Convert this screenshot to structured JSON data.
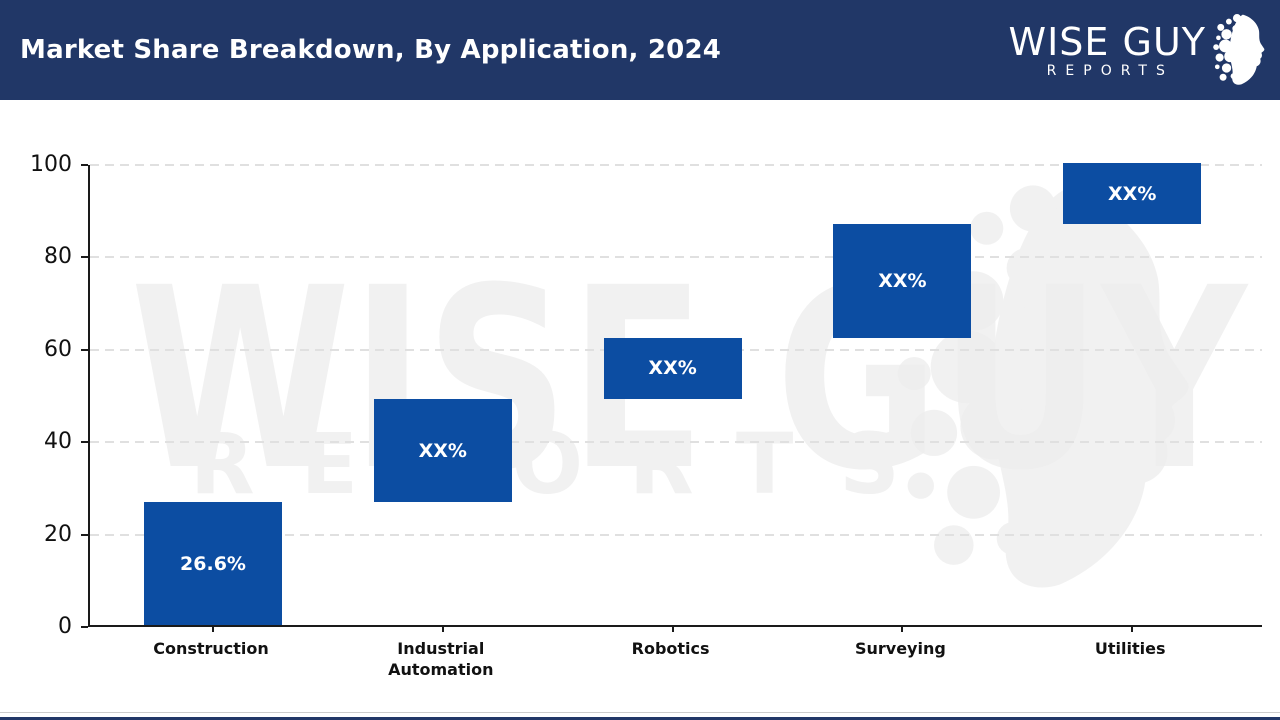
{
  "header": {
    "title": "Market Share Breakdown, By Application, 2024",
    "logo": {
      "name": "WISE GUY",
      "tagline": "REPORTS"
    }
  },
  "watermark": {
    "name": "WISE GUY",
    "tagline": "REPORTS"
  },
  "chart_data": {
    "type": "bar",
    "subtype": "waterfall",
    "title": "Market Share Breakdown, By Application, 2024",
    "categories": [
      "Construction",
      "Industrial Automation",
      "Robotics",
      "Surveying",
      "Utilities"
    ],
    "segments": [
      {
        "category": "Construction",
        "start": 0,
        "end": 26.6,
        "label": "26.6%"
      },
      {
        "category": "Industrial Automation",
        "start": 26.6,
        "end": 48.9,
        "label": "XX%"
      },
      {
        "category": "Robotics",
        "start": 48.9,
        "end": 62.2,
        "label": "XX%"
      },
      {
        "category": "Surveying",
        "start": 62.2,
        "end": 86.8,
        "label": "XX%"
      },
      {
        "category": "Utilities",
        "start": 86.8,
        "end": 100,
        "label": "XX%"
      }
    ],
    "xlabel": "",
    "ylabel": "",
    "ylim": [
      0,
      100
    ],
    "yticks": [
      0,
      20,
      40,
      60,
      80,
      100
    ],
    "grid": "horizontal-dashed",
    "legend": "none",
    "bar_color": "#0c4da2",
    "bar_label_color": "#ffffff"
  },
  "colors": {
    "header_bg": "#213767",
    "footer_bg": "#213767",
    "bar": "#0c4da2",
    "grid": "#e0e0e0",
    "axis": "#1a1a1a",
    "watermark": "#f1f1f1",
    "page_bg": "#ffffff"
  }
}
